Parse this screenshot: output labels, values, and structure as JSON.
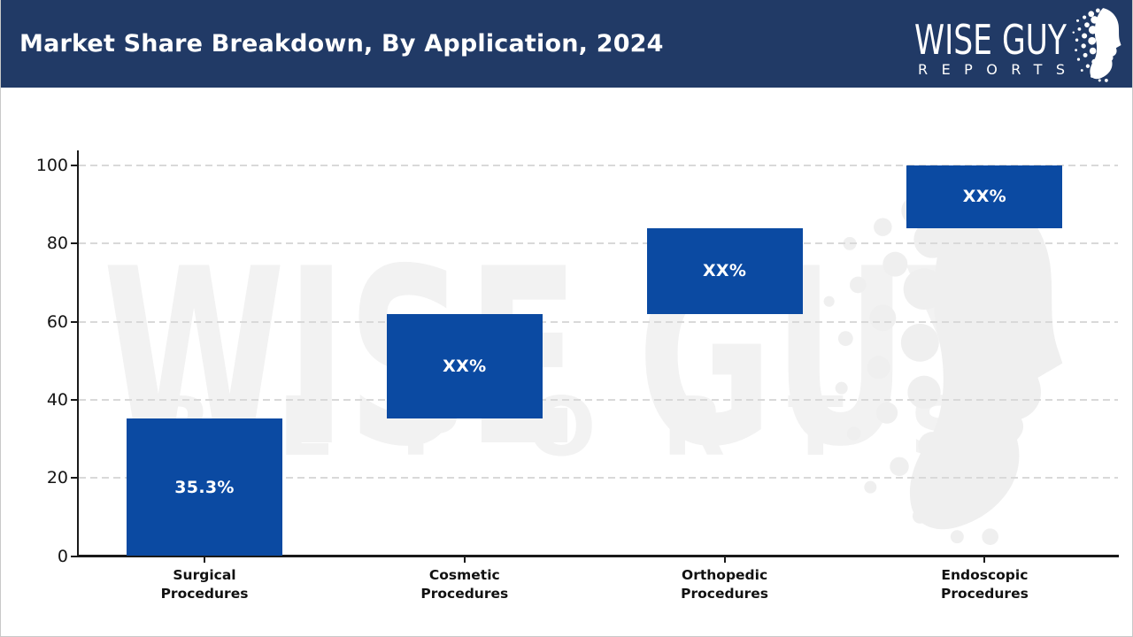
{
  "header": {
    "title": "Market Share Breakdown, By Application, 2024",
    "logo": {
      "line1": "WISE GUY",
      "line2": "REPORTS"
    }
  },
  "watermark": {
    "line1": "WISE GUY",
    "line2": "REPORTS"
  },
  "colors": {
    "header_bg": "#213a66",
    "bar": "#0b4aa2",
    "grid": "#d9d9d9",
    "axis": "#1a1a1a",
    "watermark": "#f2f2f2",
    "bar_label": "#ffffff"
  },
  "chart_data": {
    "type": "bar",
    "subtype": "waterfall",
    "title": "Market Share Breakdown, By Application, 2024",
    "categories": [
      "Surgical Procedures",
      "Cosmetic Procedures",
      "Orthopedic Procedures",
      "Endoscopic Procedures"
    ],
    "series": [
      {
        "category": "Surgical Procedures",
        "start": 0,
        "end": 35.3,
        "label": "35.3%"
      },
      {
        "category": "Cosmetic Procedures",
        "start": 35.3,
        "end": 62,
        "label": "XX%"
      },
      {
        "category": "Orthopedic Procedures",
        "start": 62,
        "end": 84,
        "label": "XX%"
      },
      {
        "category": "Endoscopic Procedures",
        "start": 84,
        "end": 100,
        "label": "XX%"
      }
    ],
    "xlabel": "",
    "ylabel": "",
    "ylim": [
      0,
      100
    ],
    "yticks": [
      0,
      20,
      40,
      60,
      80,
      100
    ],
    "grid": "horizontal-dashed",
    "legend": "none"
  }
}
